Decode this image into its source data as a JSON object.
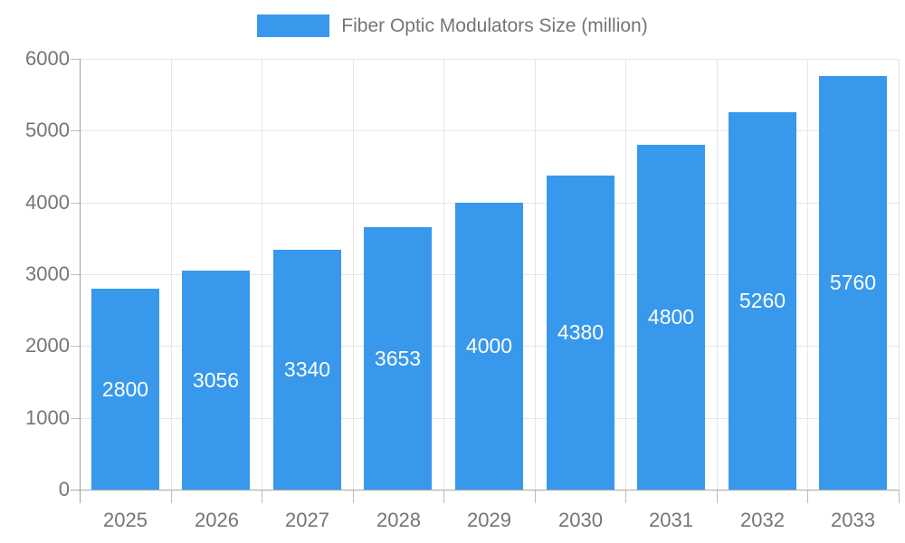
{
  "legend": {
    "label": "Fiber Optic Modulators Size (million)"
  },
  "chart_data": {
    "type": "bar",
    "title": "Fiber Optic Modulators Size (million)",
    "legend_position": "top",
    "categories": [
      "2025",
      "2026",
      "2027",
      "2028",
      "2029",
      "2030",
      "2031",
      "2032",
      "2033"
    ],
    "series": [
      {
        "name": "Fiber Optic Modulators Size (million)",
        "values": [
          2800,
          3056,
          3340,
          3653,
          4000,
          4380,
          4800,
          5260,
          5760
        ]
      }
    ],
    "value_labels_shown": true,
    "xlabel": "",
    "ylabel": "",
    "ylim": [
      0,
      6000
    ],
    "yticks": [
      0,
      1000,
      2000,
      3000,
      4000,
      5000,
      6000
    ],
    "grid": true
  },
  "colors": {
    "bar": "#3898ec",
    "grid": "#e6e6e6",
    "axis": "#a8a8a8",
    "y_axis_line": "#9e9e9e",
    "tick": "#bdbdbd",
    "label_text": "#757575",
    "bar_value_text": "#ffffff",
    "background": "#ffffff"
  }
}
